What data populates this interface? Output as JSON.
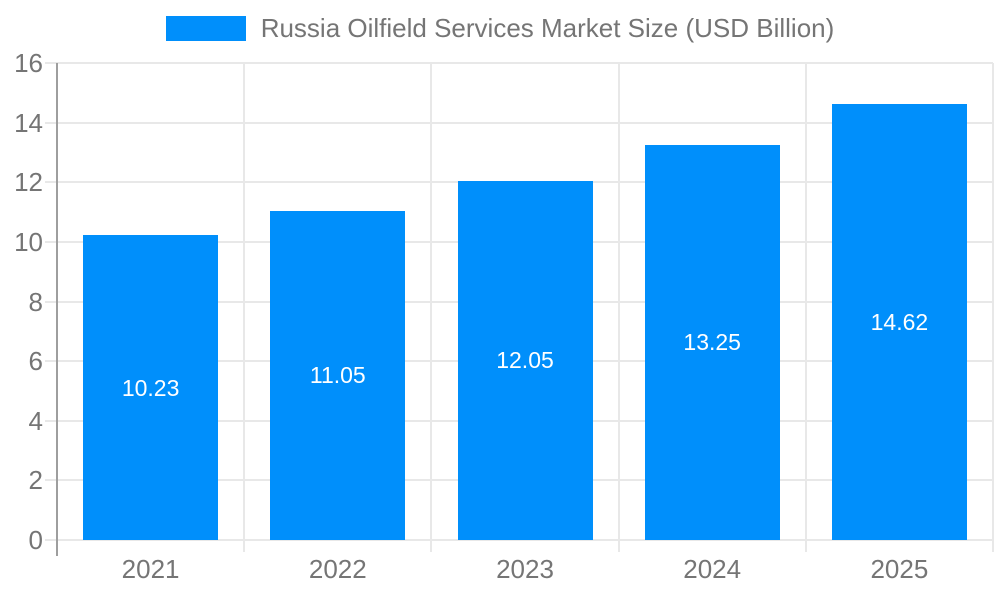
{
  "chart_data": {
    "type": "bar",
    "title": "Russia Oilfield Services Market Size (USD Billion)",
    "categories": [
      "2021",
      "2022",
      "2023",
      "2024",
      "2025"
    ],
    "values": [
      10.23,
      11.05,
      12.05,
      13.25,
      14.62
    ],
    "value_labels": [
      "10.23",
      "11.05",
      "12.05",
      "13.25",
      "14.62"
    ],
    "xlabel": "",
    "ylabel": "",
    "ylim": [
      0,
      16
    ],
    "yticks": [
      0,
      2,
      4,
      6,
      8,
      10,
      12,
      14,
      16
    ],
    "grid": "on",
    "legend_position": "top-center"
  },
  "colors": {
    "bar": "#008FFB",
    "gridline": "#e8e8e8",
    "axis_line": "#9e9e9e",
    "label_text": "#757575",
    "bar_label_text": "#ffffff",
    "background": "#ffffff"
  }
}
